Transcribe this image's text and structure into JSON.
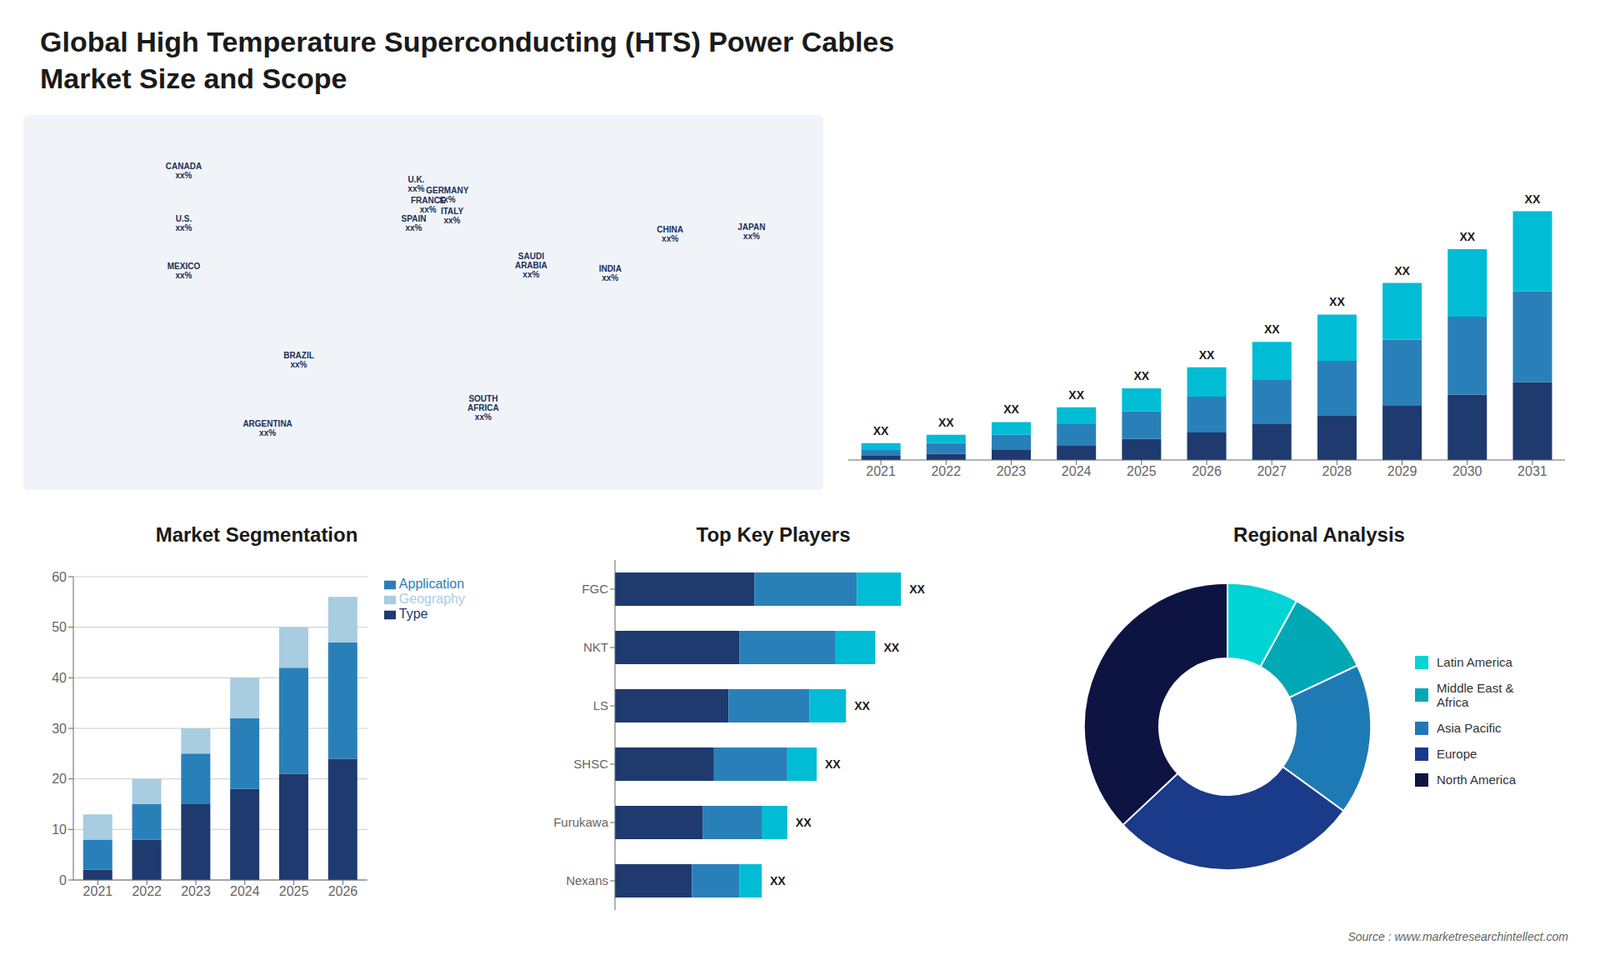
{
  "title": "Global High Temperature Superconducting (HTS) Power Cables\nMarket Size and Scope",
  "annotations": [
    "Source : www.marketresearchintellect.com"
  ],
  "chart_data": [
    {
      "type": "map",
      "xlim": [
        -160,
        160
      ],
      "ylim": [
        -55,
        75
      ],
      "tick_labels": false,
      "annotations": [
        {
          "text": "CANADA\nxx%",
          "x": -100,
          "y": 60
        },
        {
          "text": "U.S.\nxx%",
          "x": -100,
          "y": 40
        },
        {
          "text": "MEXICO\nxx%",
          "x": -100,
          "y": 22
        },
        {
          "text": "BRAZIL\nxx%",
          "x": -52,
          "y": -12
        },
        {
          "text": "ARGENTINA\nxx%",
          "x": -65,
          "y": -38
        },
        {
          "text": "U.K.\nxx%",
          "x": -3,
          "y": 55
        },
        {
          "text": "FRANCE\nxx%",
          "x": 2,
          "y": 47
        },
        {
          "text": "SPAIN\nxx%",
          "x": -4,
          "y": 40
        },
        {
          "text": "GERMANY\nxx%",
          "x": 10,
          "y": 51
        },
        {
          "text": "ITALY\nxx%",
          "x": 12,
          "y": 43
        },
        {
          "text": "SAUDI\nARABIA\nxx%",
          "x": 45,
          "y": 24
        },
        {
          "text": "SOUTH\nAFRICA\nxx%",
          "x": 25,
          "y": -30
        },
        {
          "text": "CHINA\nxx%",
          "x": 103,
          "y": 36
        },
        {
          "text": "INDIA\nxx%",
          "x": 78,
          "y": 21
        },
        {
          "text": "JAPAN\nxx%",
          "x": 137,
          "y": 37
        }
      ]
    },
    {
      "type": "bar",
      "stacked": true,
      "tick_labels": "x",
      "categories": [
        "2021",
        "2022",
        "2023",
        "2024",
        "2025",
        "2026",
        "2027",
        "2028",
        "2029",
        "2030",
        "2031"
      ],
      "series": [
        {
          "color": "#1e3a6e",
          "values": [
            2,
            3,
            5,
            7,
            10,
            13,
            17,
            21,
            26,
            31,
            37
          ]
        },
        {
          "color": "#2980b9",
          "values": [
            3,
            5,
            7,
            10,
            13,
            17,
            21,
            26,
            31,
            37,
            43
          ]
        },
        {
          "color": "#00bcd4",
          "values": [
            3,
            4,
            6,
            8,
            11,
            14,
            18,
            22,
            27,
            32,
            38
          ]
        }
      ],
      "annotations": [
        "XX",
        "XX",
        "XX",
        "XX",
        "XX",
        "XX",
        "XX",
        "XX",
        "XX",
        "XX",
        "XX"
      ],
      "ylim": [
        0,
        155.76
      ]
    },
    {
      "type": "bar",
      "title": "Market Segmentation",
      "stacked": true,
      "categories": [
        "2021",
        "2022",
        "2023",
        "2024",
        "2025",
        "2026"
      ],
      "series": [
        {
          "name": "Type",
          "color": "#1e3a6e",
          "values": [
            2,
            8,
            15,
            18,
            21,
            24
          ]
        },
        {
          "name": "Application",
          "color": "#2980b9",
          "values": [
            6,
            7,
            10,
            14,
            21,
            23
          ]
        },
        {
          "name": "Geography",
          "color": "#a8cce0",
          "values": [
            5,
            5,
            5,
            8,
            8,
            9
          ]
        }
      ],
      "ylim": [
        0,
        60
      ],
      "yticks": [
        0,
        10,
        20,
        30,
        40,
        50,
        60
      ],
      "grid": true,
      "legend": "right"
    },
    {
      "type": "bar",
      "title": "Top Key Players",
      "orientation": "horizontal",
      "stacked": true,
      "tick_labels": "y",
      "categories": [
        "FGC",
        "NKT",
        "LS",
        "SHSC",
        "Furukawa",
        "Nexans"
      ],
      "series": [
        {
          "color": "#1e3a6e",
          "values": [
            0.38,
            0.34,
            0.31,
            0.27,
            0.24,
            0.21
          ]
        },
        {
          "color": "#2980b9",
          "values": [
            0.28,
            0.26,
            0.22,
            0.2,
            0.16,
            0.13
          ]
        },
        {
          "color": "#00bcd4",
          "values": [
            0.12,
            0.11,
            0.1,
            0.08,
            0.07,
            0.06
          ]
        }
      ],
      "annotations": [
        "XX",
        "XX",
        "XX",
        "XX",
        "XX",
        "XX"
      ],
      "xlim": [
        0,
        1
      ]
    },
    {
      "type": "donut",
      "title": "Regional Analysis",
      "categories": [
        "Latin America",
        "Middle East &\nAfrica",
        "Asia Pacific",
        "Europe",
        "North America"
      ],
      "values": [
        0.08,
        0.1,
        0.17,
        0.28,
        0.37
      ],
      "colors": [
        "#00d4d4",
        "#00a8b5",
        "#1e7ab5",
        "#1a3a8a",
        "#0d1442"
      ],
      "legend": "right"
    }
  ]
}
